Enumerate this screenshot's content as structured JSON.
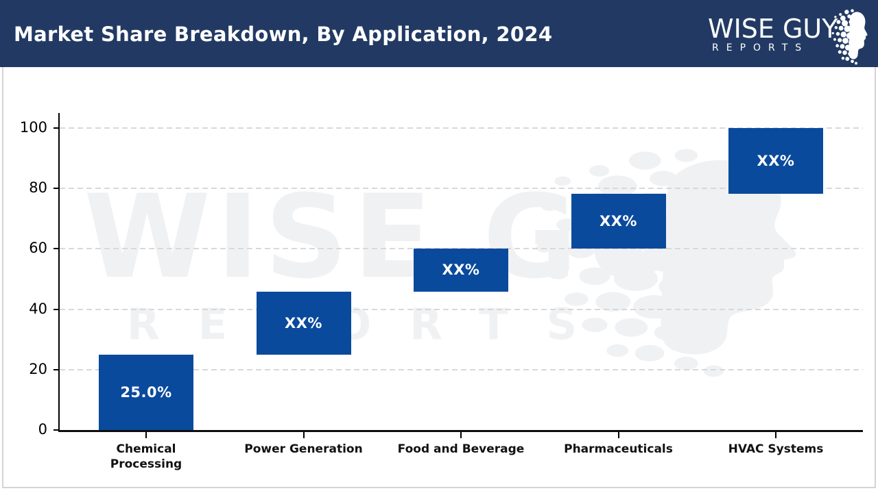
{
  "header": {
    "title": "Market Share Breakdown, By Application, 2024",
    "logo": {
      "line1": "WISE GUY",
      "line2": "REPORTS"
    }
  },
  "watermark": {
    "line1": "WISE GUY",
    "line2": "REPORTS"
  },
  "chart_data": {
    "type": "bar",
    "subtype": "waterfall",
    "title": "Market Share Breakdown, By Application, 2024",
    "categories": [
      "Chemical\nProcessing",
      "Power Generation",
      "Food and Beverage",
      "Pharmaceuticals",
      "HVAC Systems"
    ],
    "segments": [
      {
        "category": "Chemical Processing",
        "start": 0,
        "end": 25.0,
        "label": "25.0%"
      },
      {
        "category": "Power Generation",
        "start": 25.0,
        "end": 45.8,
        "label": "XX%"
      },
      {
        "category": "Food and Beverage",
        "start": 45.8,
        "end": 60.2,
        "label": "XX%"
      },
      {
        "category": "Pharmaceuticals",
        "start": 60.2,
        "end": 78.3,
        "label": "XX%"
      },
      {
        "category": "HVAC Systems",
        "start": 78.3,
        "end": 100.0,
        "label": "XX%"
      }
    ],
    "y_ticks": [
      0,
      20,
      40,
      60,
      80,
      100
    ],
    "ylim": [
      0,
      105
    ],
    "xlabel": "",
    "ylabel": "",
    "grid": "dashed-horizontal",
    "legend": "none",
    "bar_color": "#0a4a9c",
    "bar_label_color": "#ffffff"
  },
  "colors": {
    "header_bg": "#223a63",
    "bar": "#0a4a9c",
    "gridline": "#d8d8d8",
    "axis": "#000000",
    "watermark": "#f0f1f3",
    "frame_border": "#d4d4d4"
  }
}
